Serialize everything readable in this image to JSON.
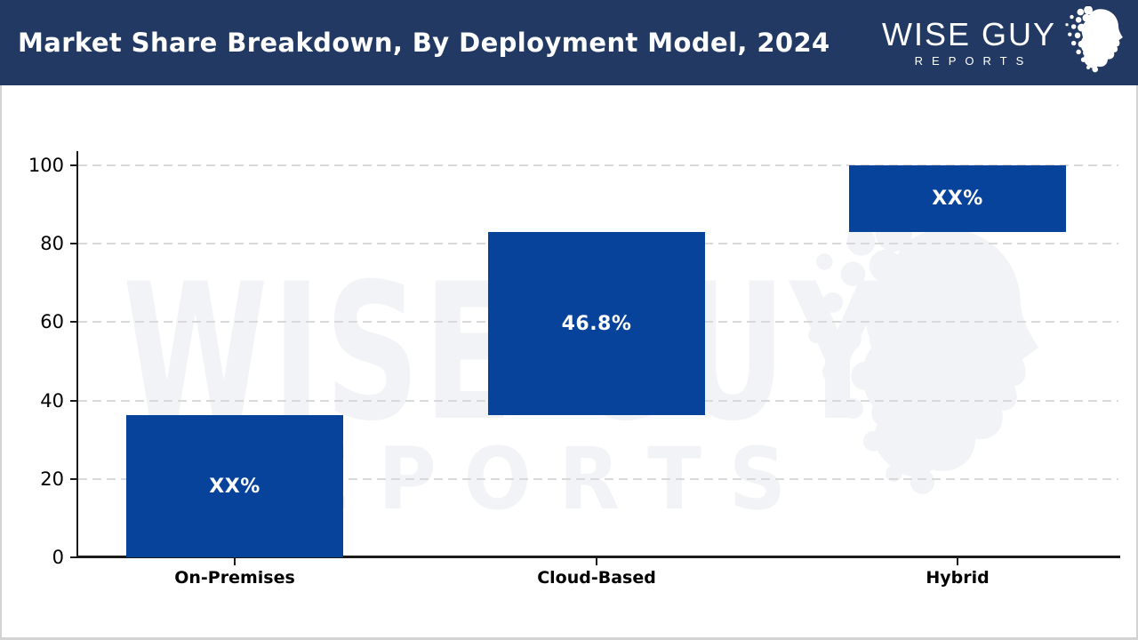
{
  "header": {
    "title": "Market Share Breakdown, By Deployment Model, 2024",
    "logo": {
      "line1": "WISE GUY",
      "line2": "REPORTS"
    }
  },
  "watermark": {
    "line1": "WISE GUY",
    "line2": "R E P O R T S"
  },
  "chart_data": {
    "type": "bar",
    "subtype": "stacked-waterfall",
    "title": "Market Share Breakdown, By Deployment Model, 2024",
    "categories": [
      "On-Premises",
      "Cloud-Based",
      "Hybrid"
    ],
    "segments": [
      {
        "category": "On-Premises",
        "start": 0,
        "end": 36.2,
        "label": "XX%"
      },
      {
        "category": "Cloud-Based",
        "start": 36.2,
        "end": 83,
        "label": "46.8%"
      },
      {
        "category": "Hybrid",
        "start": 83,
        "end": 100,
        "label": "XX%"
      }
    ],
    "xlabel": "",
    "ylabel": "",
    "ylim": [
      0,
      100
    ],
    "yticks": [
      0,
      20,
      40,
      60,
      80,
      100
    ],
    "grid": "horizontal-dashed",
    "legend": "none",
    "bar_color": "#07439b"
  },
  "colors": {
    "header_bg": "#223a63",
    "bar": "#07439b",
    "axis": "#1a1a1a",
    "gridline": "#d9d9d9",
    "watermark": "#f2f3f6",
    "page_edge": "#d3d3d3"
  }
}
